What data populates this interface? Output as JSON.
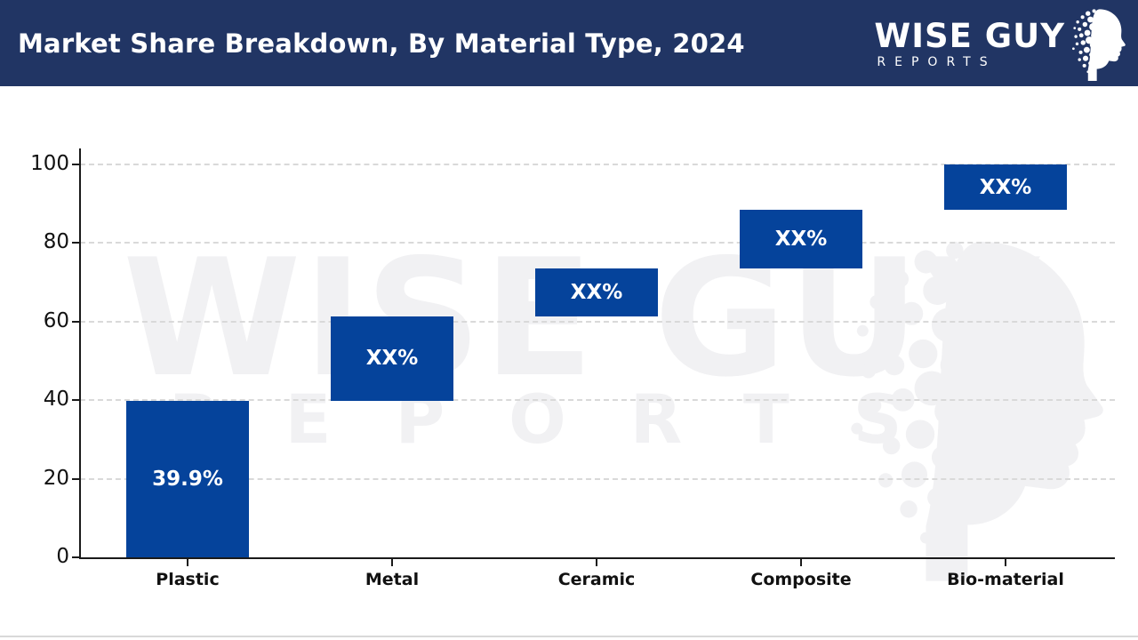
{
  "header": {
    "title": "Market Share Breakdown, By Material Type, 2024",
    "logo": {
      "line1": "WISE GUY",
      "line2": "REPORTS"
    }
  },
  "watermark": {
    "line1": "WISE GUY",
    "line2": "REPORTS"
  },
  "colors": {
    "header_bg": "#213564",
    "header_text": "#ffffff",
    "bar": "#05439b",
    "bar_label": "#ffffff",
    "grid": "#d9d9d9",
    "axis": "#1a1a1a",
    "watermark": "#f1f1f3"
  },
  "chart_data": {
    "type": "bar",
    "subtype": "waterfall",
    "title": "Market Share Breakdown, By Material Type, 2024",
    "xlabel": "",
    "ylabel": "",
    "categories": [
      "Plastic",
      "Metal",
      "Ceramic",
      "Composite",
      "Bio-material"
    ],
    "segments": [
      {
        "category": "Plastic",
        "start": 0,
        "end": 39.9,
        "label": "39.9%"
      },
      {
        "category": "Metal",
        "start": 39.9,
        "end": 61.4,
        "label": "XX%"
      },
      {
        "category": "Ceramic",
        "start": 61.4,
        "end": 73.6,
        "label": "XX%"
      },
      {
        "category": "Composite",
        "start": 73.6,
        "end": 88.4,
        "label": "XX%"
      },
      {
        "category": "Bio-material",
        "start": 88.4,
        "end": 100,
        "label": "XX%"
      }
    ],
    "y_ticks": [
      0,
      20,
      40,
      60,
      80,
      100
    ],
    "ylim": [
      0,
      104
    ],
    "grid": "horizontal-dashed",
    "legend": "none"
  }
}
